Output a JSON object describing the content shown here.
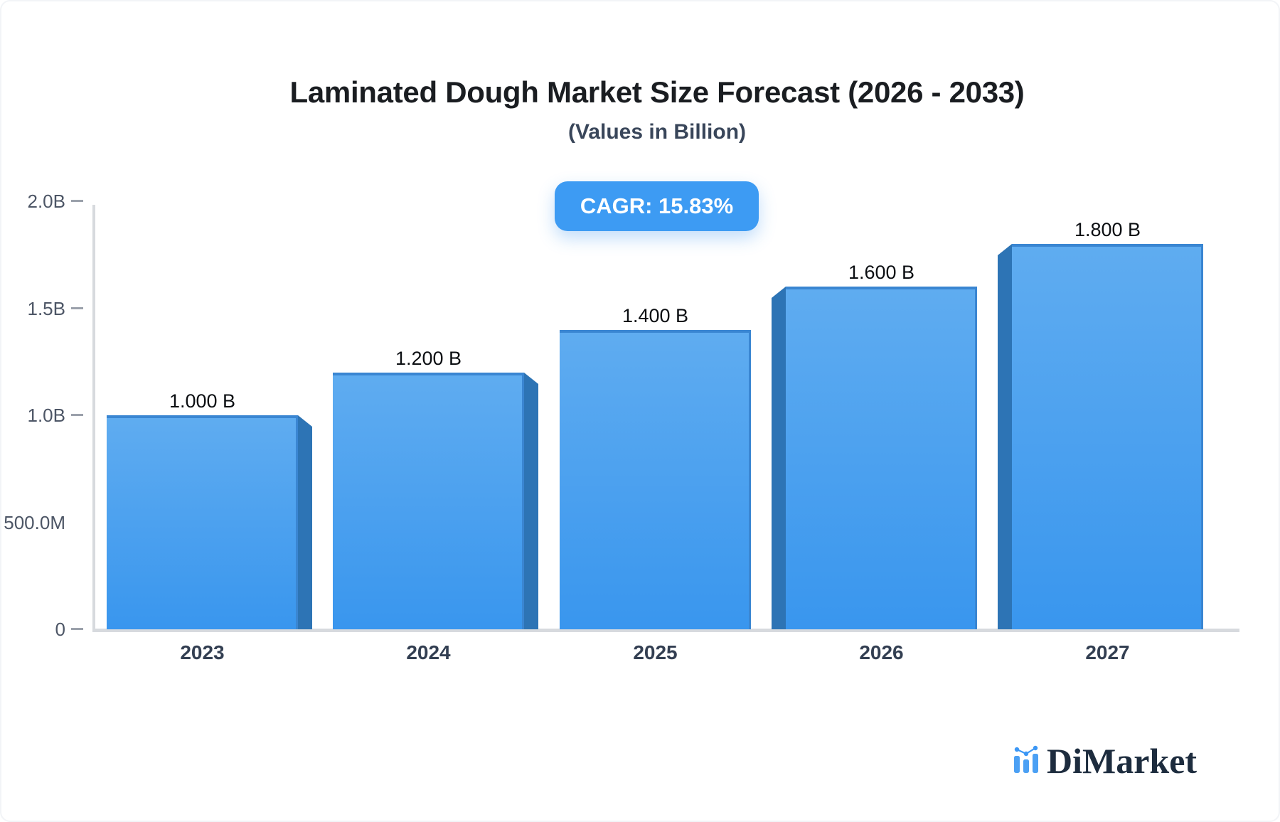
{
  "chart_data": {
    "type": "bar",
    "title": "Laminated Dough Market Size Forecast (2026 - 2033)",
    "subtitle": "(Values in Billion)",
    "cagr_label": "CAGR: 15.83%",
    "cagr_percent": 15.83,
    "categories": [
      "2023",
      "2024",
      "2025",
      "2026",
      "2027"
    ],
    "values": [
      1.0,
      1.2,
      1.4,
      1.6,
      1.8
    ],
    "bar_labels": [
      "1.000 B",
      "1.200 B",
      "1.400 B",
      "1.600 B",
      "1.800 B"
    ],
    "value_unit": "B",
    "yticks": [
      {
        "label": "2.0B",
        "value": 2.0,
        "dash": true
      },
      {
        "label": "1.5B",
        "value": 1.5,
        "dash": true
      },
      {
        "label": "1.0B",
        "value": 1.0,
        "dash": true
      },
      {
        "label": "500.0M",
        "value": 0.5,
        "dash": false
      },
      {
        "label": "0",
        "value": 0,
        "dash": true
      }
    ],
    "ylim": [
      0,
      2.0
    ],
    "grid": false,
    "legend": false
  },
  "brand": {
    "name": "DiMarket",
    "icon": "bar-line-chart-icon"
  },
  "colors": {
    "bar_face_top": "#5FACF0",
    "bar_face_bottom": "#3996EE",
    "bar_edge_dark": "#3A86D2",
    "bar_side": "#2D74B5",
    "badge_bg": "#3D9BF3",
    "axis_line": "#D7DADE",
    "tick_dash": "#9BA1AB",
    "title": "#1A1D21",
    "subtitle": "#39465A",
    "xlabel": "#333F52",
    "ylabel": "#4D5666",
    "value_label": "#0B0E12",
    "brand_blue": "#4BA0F4",
    "brand_navy": "#1D2C3E"
  }
}
